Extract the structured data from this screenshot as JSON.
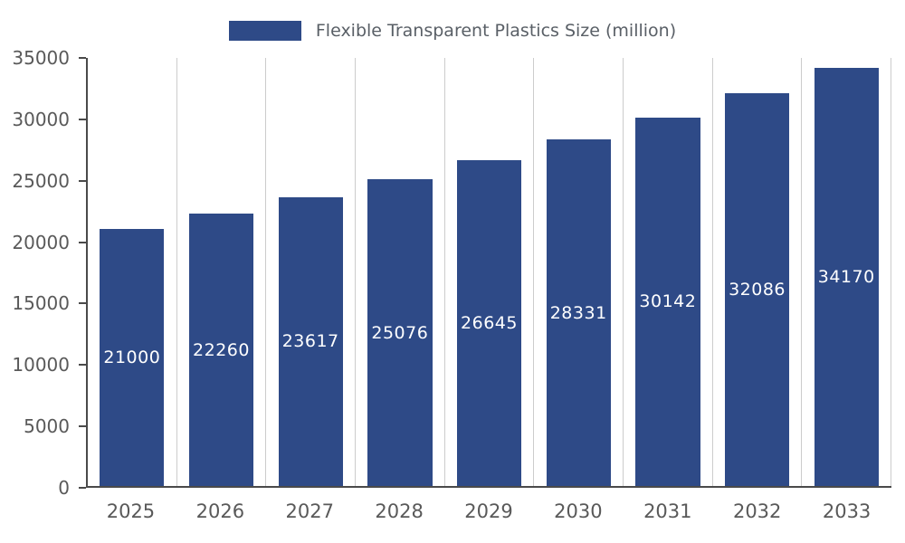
{
  "chart_data": {
    "type": "bar",
    "title": "Flexible Transparent Plastics Size (million)",
    "categories": [
      "2025",
      "2026",
      "2027",
      "2028",
      "2029",
      "2030",
      "2031",
      "2032",
      "2033"
    ],
    "values": [
      21000,
      22260,
      23617,
      25076,
      26645,
      28331,
      30142,
      32086,
      34170
    ],
    "xlabel": "",
    "ylabel": "",
    "ylim": [
      0,
      35000
    ],
    "ytick_step": 5000,
    "ytick_labels": [
      "0",
      "5000",
      "10000",
      "15000",
      "20000",
      "25000",
      "30000",
      "35000"
    ],
    "bar_color": "#2e4a87",
    "value_label_color": "#ffffff",
    "axis_text_color": "#595959",
    "grid": "vertical-only",
    "legend_position": "top-center"
  }
}
